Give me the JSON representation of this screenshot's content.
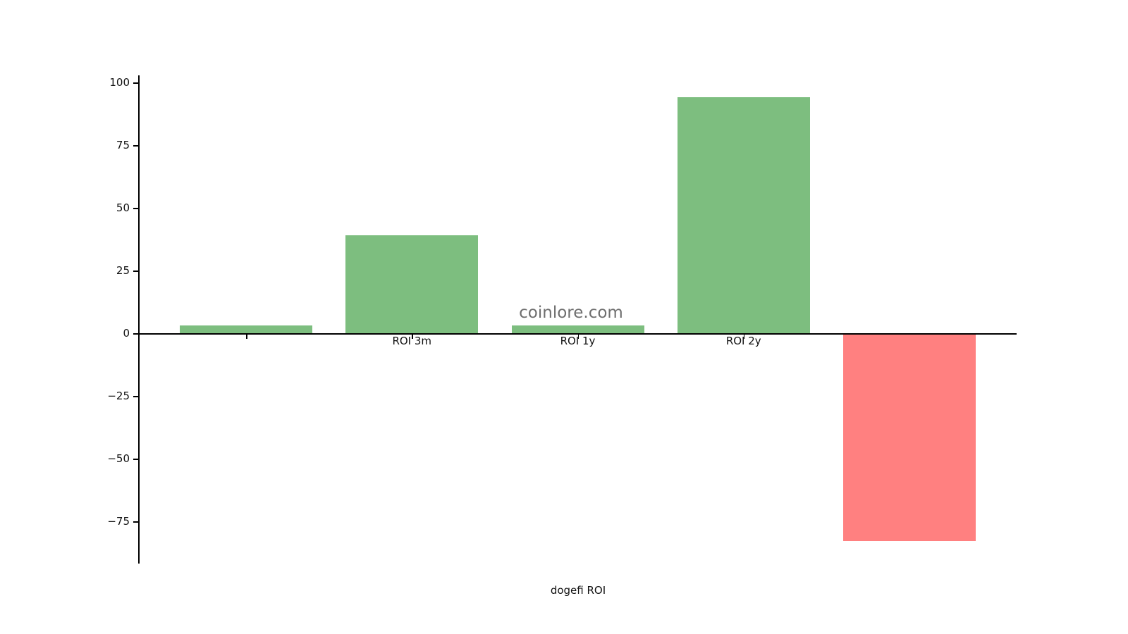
{
  "watermark": {
    "text": "coinlore.com"
  },
  "footer": {
    "title": "dogefi ROI"
  },
  "chart_data": {
    "type": "bar",
    "title": "dogefi ROI",
    "watermark": "coinlore.com",
    "categories": [
      "",
      "ROI 3m",
      "ROI 1y",
      "ROI 2y",
      ""
    ],
    "values": [
      3,
      39,
      3,
      94,
      -83
    ],
    "yticks": [
      {
        "value": 100,
        "label": "100"
      },
      {
        "value": 75,
        "label": "75"
      },
      {
        "value": 50,
        "label": "50"
      },
      {
        "value": 25,
        "label": "25"
      },
      {
        "value": 0,
        "label": "0"
      },
      {
        "value": -25,
        "label": "−25"
      },
      {
        "value": -50,
        "label": "−50"
      },
      {
        "value": -75,
        "label": "−75"
      }
    ],
    "ylim": [
      -91.9,
      102.9
    ],
    "xlabel": "dogefi ROI",
    "ylabel": "",
    "grid": false,
    "legend": null,
    "positive_color": "#7dbe7f",
    "negative_color": "#ff8080",
    "axis_color": "#000000",
    "text_color": "#111111",
    "watermark_color": "#6e6e6e"
  }
}
